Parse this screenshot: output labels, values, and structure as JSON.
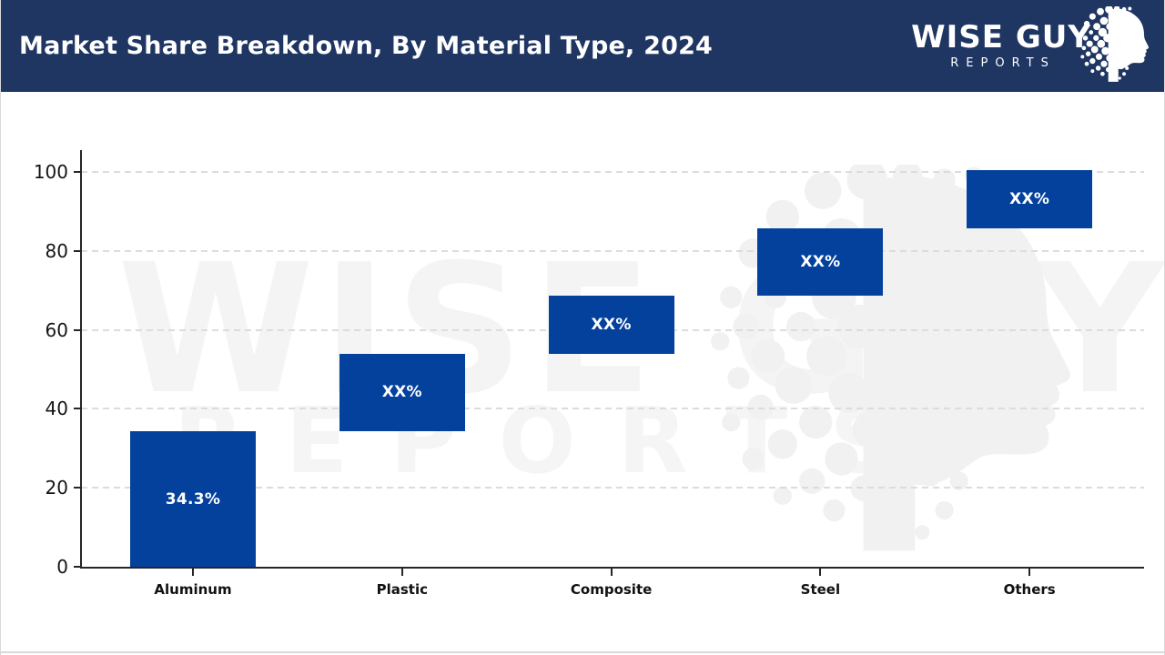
{
  "header": {
    "title": "Market Share Breakdown, By Material Type, 2024",
    "logo": {
      "wordmark": "WISE GUY",
      "subtext": "REPORTS"
    }
  },
  "chart_data": {
    "type": "bar",
    "subtype": "waterfall",
    "title": "Market Share Breakdown, By Material Type, 2024",
    "categories": [
      "Aluminum",
      "Plastic",
      "Composite",
      "Steel",
      "Others"
    ],
    "bars": [
      {
        "category": "Aluminum",
        "start": 0,
        "end": 34.3,
        "label": "34.3%"
      },
      {
        "category": "Plastic",
        "start": 34.3,
        "end": 54.0,
        "label": "XX%"
      },
      {
        "category": "Composite",
        "start": 54.0,
        "end": 68.7,
        "label": "XX%"
      },
      {
        "category": "Steel",
        "start": 68.7,
        "end": 85.7,
        "label": "XX%"
      },
      {
        "category": "Others",
        "start": 85.7,
        "end": 100.5,
        "label": "XX%"
      }
    ],
    "y_ticks": [
      0,
      20,
      40,
      60,
      80,
      100
    ],
    "ylim": [
      0,
      105
    ],
    "xlabel": "",
    "ylabel": "",
    "grid": true,
    "legend": null,
    "colors": {
      "bar": "#04419c",
      "header_bg": "#1f3562",
      "axis": "#262626",
      "grid": "#dcdcdc",
      "bar_label": "#ffffff"
    },
    "watermark": {
      "line1": "WISE GUY",
      "line2": "REPORTS"
    }
  }
}
